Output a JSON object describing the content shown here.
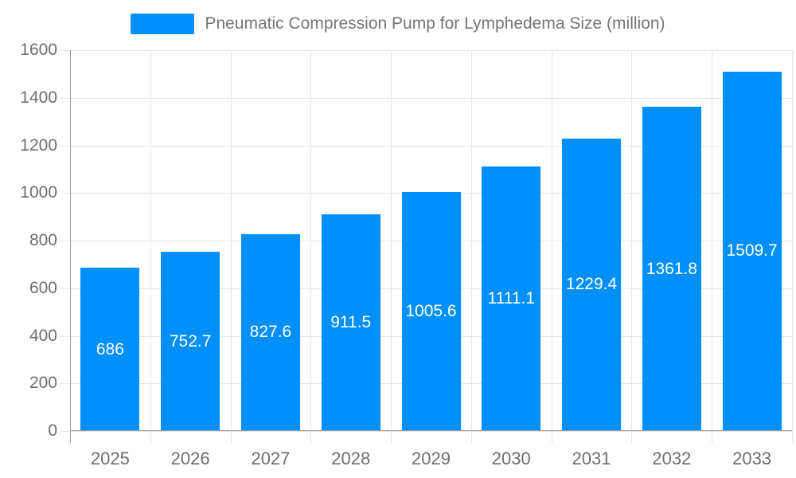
{
  "legend": {
    "label": "Pneumatic Compression Pump for Lymphedema Size (million)"
  },
  "chart_data": {
    "type": "bar",
    "title": "Pneumatic Compression Pump for Lymphedema Size (million)",
    "categories": [
      "2025",
      "2026",
      "2027",
      "2028",
      "2029",
      "2030",
      "2031",
      "2032",
      "2033"
    ],
    "values": [
      686,
      752.7,
      827.6,
      911.5,
      1005.6,
      1111.1,
      1229.4,
      1361.8,
      1509.7
    ],
    "data_labels": [
      "686",
      "752.7",
      "827.6",
      "911.5",
      "1005.6",
      "1111.1",
      "1229.4",
      "1361.8",
      "1509.7"
    ],
    "yticks": [
      0,
      200,
      400,
      600,
      800,
      1000,
      1200,
      1400,
      1600
    ],
    "ylim": [
      0,
      1600
    ],
    "xlabel": "",
    "ylabel": "",
    "grid": true,
    "legend_position": "top",
    "colors": {
      "bar": "#008FFB",
      "grid": "#e4e4e4",
      "axis": "#9c9c9c",
      "tick_label": "#6e6e6e",
      "title": "#757575",
      "data_label": "#ffffff",
      "background": "#ffffff"
    }
  }
}
